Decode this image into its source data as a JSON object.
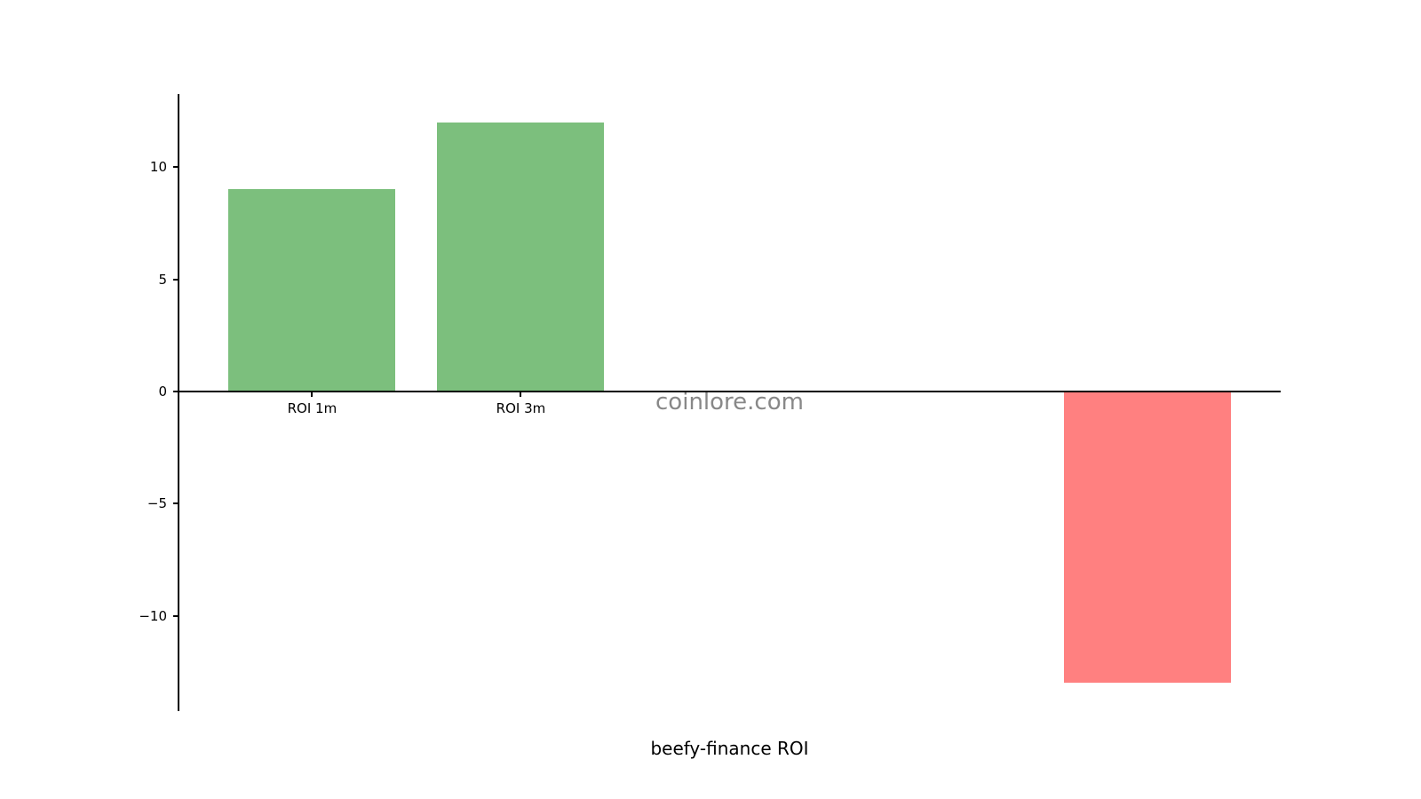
{
  "watermark": {
    "text": "coinlore.com",
    "color": "#888888"
  },
  "chart_data": {
    "type": "bar",
    "title": "beefy-finance ROI",
    "bars": [
      {
        "x": 0,
        "label": "ROI 1m",
        "value": 9,
        "color": "#7cbf7d"
      },
      {
        "x": 1,
        "label": "ROI 3m",
        "value": 12,
        "color": "#7cbf7d"
      },
      {
        "x": 4,
        "label": "",
        "value": -13,
        "color": "#ff8080"
      }
    ],
    "x_ticks": [
      {
        "x": 0,
        "label": "ROI 1m"
      },
      {
        "x": 1,
        "label": "ROI 3m"
      }
    ],
    "y_ticks": [
      10,
      5,
      0,
      -5,
      -10
    ],
    "xlim": [
      -0.64,
      4.64
    ],
    "ylim": [
      -14.25,
      13.25
    ],
    "bar_width": 0.8,
    "grid": false,
    "legend": false,
    "positive_color": "#7cbf7d",
    "negative_color": "#ff8080",
    "axis_color": "#000000",
    "text_color": "#000000"
  }
}
